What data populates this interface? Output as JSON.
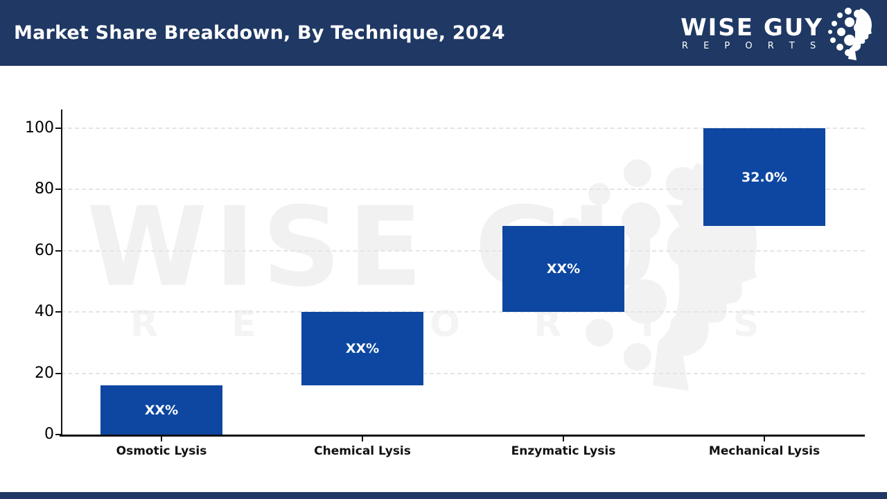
{
  "header": {
    "title": "Market Share Breakdown, By Technique, 2024",
    "brand": {
      "line1": "WISE GUY",
      "line2": "R E P O R T S"
    }
  },
  "watermark": {
    "line1": "WISE GUY",
    "line2": "R E P O R T S"
  },
  "colors": {
    "header_bg": "#1f3864",
    "footer_bg": "#1f3864",
    "bar": "#0d47a1",
    "axis": "#111111",
    "grid": "#e4e4e4",
    "watermark": "#f2f2f2",
    "bar_label": "#ffffff"
  },
  "chart_data": {
    "type": "bar",
    "variant": "floating-waterfall",
    "title": "Market Share Breakdown, By Technique, 2024",
    "categories": [
      "Osmotic Lysis",
      "Chemical Lysis",
      "Enzymatic Lysis",
      "Mechanical Lysis"
    ],
    "series": [
      {
        "name": "Osmotic Lysis",
        "start": 0,
        "end": 16,
        "value": 16,
        "label": "XX%"
      },
      {
        "name": "Chemical Lysis",
        "start": 16,
        "end": 40,
        "value": 24,
        "label": "XX%"
      },
      {
        "name": "Enzymatic Lysis",
        "start": 40,
        "end": 68,
        "value": 28,
        "label": "XX%"
      },
      {
        "name": "Mechanical Lysis",
        "start": 68,
        "end": 100,
        "value": 32,
        "label": "32.0%"
      }
    ],
    "xlabel": "",
    "ylabel": "",
    "ylim": [
      0,
      100
    ],
    "yticks": [
      0,
      20,
      40,
      60,
      80,
      100
    ],
    "grid": {
      "horizontal": true,
      "style": "dashed"
    },
    "legend": "none"
  }
}
